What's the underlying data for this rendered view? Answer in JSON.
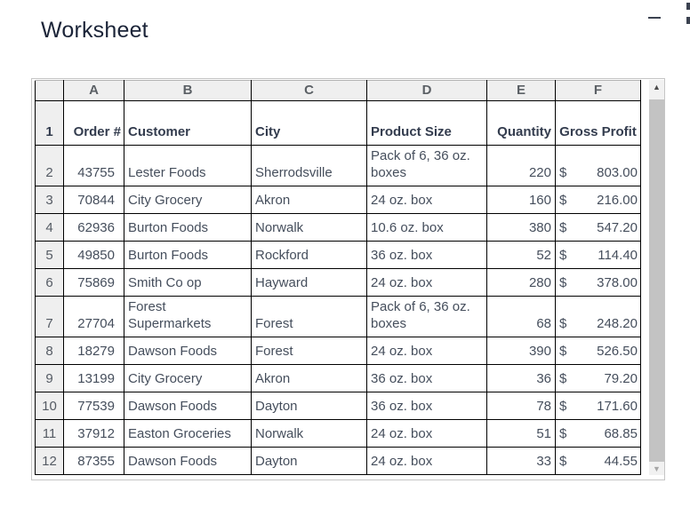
{
  "page": {
    "title": "Worksheet"
  },
  "scrollbar": {
    "up_icon": "▲",
    "down_icon": "▼"
  },
  "colors": {
    "title_text": "#1b2438",
    "header_text": "#333c4e",
    "cell_text": "#454e5c",
    "header_bg": "#efefef",
    "grid_border": "#000000",
    "container_border": "#c5c5c5",
    "scrollbar_track": "#f1f1f1",
    "scrollbar_thumb": "#c3c3c3"
  },
  "spreadsheet": {
    "column_letters": [
      "A",
      "B",
      "C",
      "D",
      "E",
      "F"
    ],
    "header_row": {
      "num": "1",
      "order": "Order #",
      "customer": "Customer",
      "city": "City",
      "product_size": "Product Size",
      "quantity": "Quantity",
      "gross_profit": "Gross Profit"
    },
    "rows": [
      {
        "num": "2",
        "order": "43755",
        "customer": "Lester Foods",
        "city": "Sherrodsville",
        "product_size": "Pack of 6, 36 oz. boxes",
        "quantity": "220",
        "currency": "$",
        "gross_profit": "803.00"
      },
      {
        "num": "3",
        "order": "70844",
        "customer": "City Grocery",
        "city": "Akron",
        "product_size": "24 oz. box",
        "quantity": "160",
        "currency": "$",
        "gross_profit": "216.00"
      },
      {
        "num": "4",
        "order": "62936",
        "customer": "Burton Foods",
        "city": "Norwalk",
        "product_size": "10.6 oz. box",
        "quantity": "380",
        "currency": "$",
        "gross_profit": "547.20"
      },
      {
        "num": "5",
        "order": "49850",
        "customer": "Burton Foods",
        "city": "Rockford",
        "product_size": "36 oz. box",
        "quantity": "52",
        "currency": "$",
        "gross_profit": "114.40"
      },
      {
        "num": "6",
        "order": "75869",
        "customer": "Smith Co op",
        "city": "Hayward",
        "product_size": "24 oz. box",
        "quantity": "280",
        "currency": "$",
        "gross_profit": "378.00"
      },
      {
        "num": "7",
        "order": "27704",
        "customer": "Forest Supermarkets",
        "city": "Forest",
        "product_size": "Pack of 6, 36 oz. boxes",
        "quantity": "68",
        "currency": "$",
        "gross_profit": "248.20"
      },
      {
        "num": "8",
        "order": "18279",
        "customer": "Dawson Foods",
        "city": "Forest",
        "product_size": "24 oz. box",
        "quantity": "390",
        "currency": "$",
        "gross_profit": "526.50"
      },
      {
        "num": "9",
        "order": "13199",
        "customer": "City Grocery",
        "city": "Akron",
        "product_size": "36 oz. box",
        "quantity": "36",
        "currency": "$",
        "gross_profit": "79.20"
      },
      {
        "num": "10",
        "order": "77539",
        "customer": "Dawson Foods",
        "city": "Dayton",
        "product_size": "36 oz. box",
        "quantity": "78",
        "currency": "$",
        "gross_profit": "171.60"
      },
      {
        "num": "11",
        "order": "37912",
        "customer": "Easton Groceries",
        "city": "Norwalk",
        "product_size": "24 oz. box",
        "quantity": "51",
        "currency": "$",
        "gross_profit": "68.85"
      },
      {
        "num": "12",
        "order": "87355",
        "customer": "Dawson Foods",
        "city": "Dayton",
        "product_size": "24 oz. box",
        "quantity": "33",
        "currency": "$",
        "gross_profit": "44.55"
      }
    ]
  }
}
